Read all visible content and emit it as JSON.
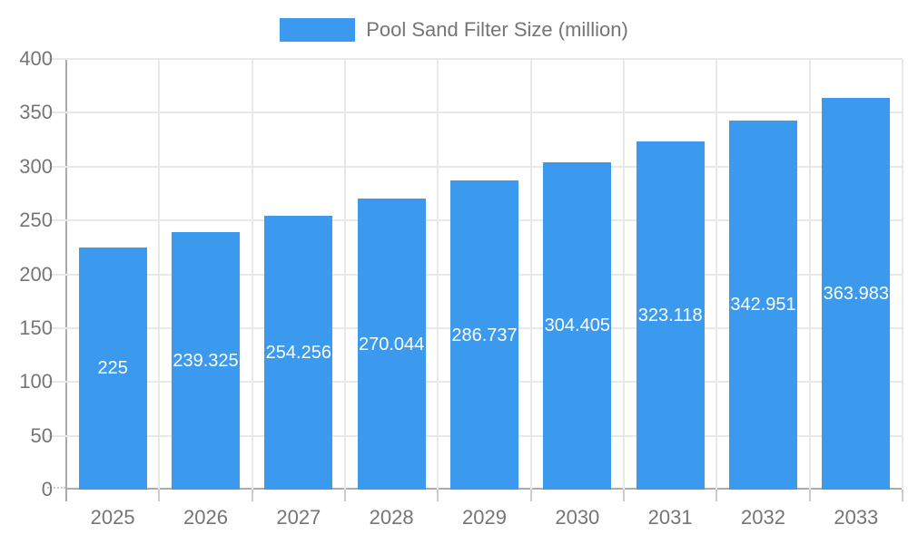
{
  "legend": {
    "label": "Pool Sand Filter Size (million)"
  },
  "chart_data": {
    "type": "bar",
    "title": "Pool Sand Filter Size (million)",
    "categories": [
      "2025",
      "2026",
      "2027",
      "2028",
      "2029",
      "2030",
      "2031",
      "2032",
      "2033"
    ],
    "series": [
      {
        "name": "Pool Sand Filter Size (million)",
        "values": [
          225,
          239.325,
          254.256,
          270.044,
          286.737,
          304.405,
          323.118,
          342.951,
          363.983
        ]
      }
    ],
    "value_labels": [
      "225",
      "239.325",
      "254.256",
      "270.044",
      "286.737",
      "304.405",
      "323.118",
      "342.951",
      "363.983"
    ],
    "xlabel": "",
    "ylabel": "",
    "ylim": [
      0,
      400
    ],
    "yticks": [
      0,
      50,
      100,
      150,
      200,
      250,
      300,
      350,
      400
    ],
    "grid": true,
    "legend_position": "top",
    "colors": {
      "bar": "#3b9aee",
      "bar_label_text": "#ffffff",
      "axis_text": "#757575",
      "gridline": "#e8e8e8",
      "axis_line": "#ababab"
    }
  }
}
